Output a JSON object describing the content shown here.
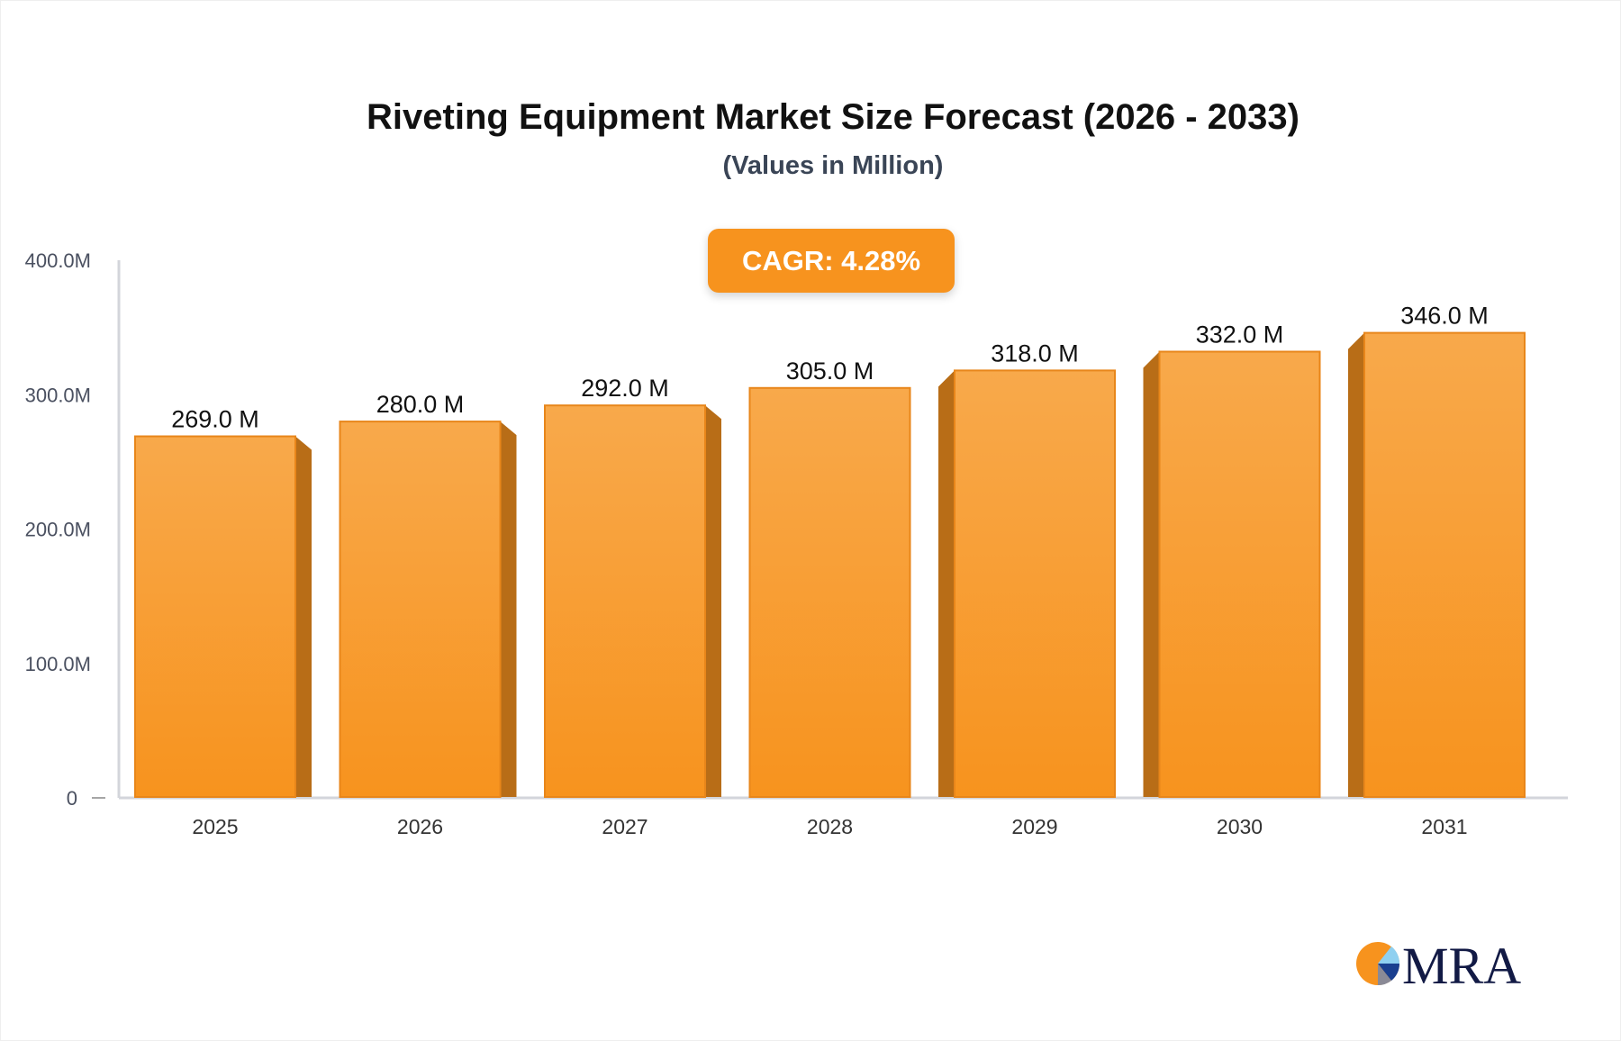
{
  "chart_data": {
    "type": "bar",
    "title": "Riveting Equipment Market Size Forecast (2026 - 2033)",
    "subtitle": "(Values in Million)",
    "annotation": "CAGR: 4.28%",
    "categories": [
      "2025",
      "2026",
      "2027",
      "2028",
      "2029",
      "2030",
      "2031"
    ],
    "values": [
      269.0,
      280.0,
      292.0,
      305.0,
      318.0,
      332.0,
      346.0
    ],
    "data_labels": [
      "269.0 M",
      "280.0 M",
      "292.0 M",
      "305.0 M",
      "318.0 M",
      "332.0 M",
      "346.0 M"
    ],
    "ylim": [
      0,
      400
    ],
    "yticks": [
      0,
      100,
      200,
      300,
      400
    ],
    "ytick_labels": [
      "0",
      "100.0M",
      "200.0M",
      "300.0M",
      "400.0M"
    ],
    "xlabel": "",
    "ylabel": "",
    "grid": false,
    "colors": {
      "bar_top": "#f8a94b",
      "bar_bottom": "#f7931e",
      "bar_side": "#b86d17",
      "axis": "#d3d5db",
      "annotation_bg": "#f7931e"
    }
  },
  "logo": {
    "text": "MRA"
  }
}
